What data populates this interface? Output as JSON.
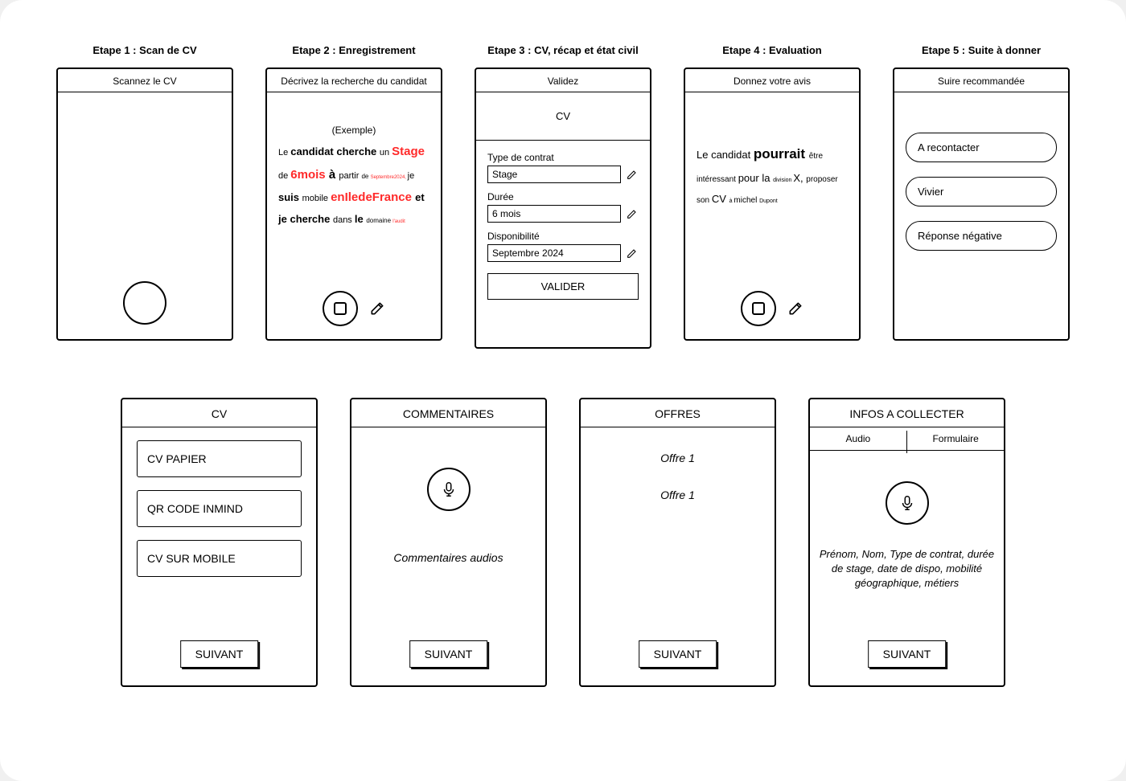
{
  "colors": {
    "bg": "#ffffff",
    "stroke": "#000000",
    "accent_red": "#ff2a2a"
  },
  "top_row": [
    {
      "step_label": "Etape 1 : Scan de CV",
      "header": "Scannez le CV"
    },
    {
      "step_label": "Etape 2 : Enregistrement",
      "header": "Décrivez la recherche du candidat",
      "example_label": "(Exemple)",
      "tokens": [
        {
          "t": "Le",
          "cls": "t-sm"
        },
        {
          "t": "candidat",
          "cls": "t-md"
        },
        {
          "t": "cherche",
          "cls": "t-md"
        },
        {
          "t": "un",
          "cls": "t-sm"
        },
        {
          "t": "Stage",
          "cls": "t-lg red"
        },
        {
          "t": "de",
          "cls": "t-sm"
        },
        {
          "t": "6mois",
          "cls": "t-lg red"
        },
        {
          "t": "à",
          "cls": "t-lg"
        },
        {
          "t": "partir",
          "cls": "t-sm"
        },
        {
          "t": "de",
          "cls": "t-xs"
        },
        {
          "t": "Septembre2024,",
          "cls": "t-xxs red"
        },
        {
          "t": "je",
          "cls": "t-sm"
        },
        {
          "t": "suis",
          "cls": "t-md"
        },
        {
          "t": "mobile",
          "cls": "t-sm"
        },
        {
          "t": "enIledeFrance",
          "cls": "t-lg red"
        },
        {
          "t": "et je",
          "cls": "t-md"
        },
        {
          "t": "cherche",
          "cls": "t-md"
        },
        {
          "t": "dans",
          "cls": "t-sm"
        },
        {
          "t": "le",
          "cls": "t-md"
        },
        {
          "t": "domaine",
          "cls": "t-xs"
        },
        {
          "t": "l'audit",
          "cls": "t-xxs red"
        }
      ]
    },
    {
      "step_label": "Etape 3 : CV, récap et état civil",
      "header": "Validez",
      "cv_label": "CV",
      "fields": [
        {
          "label": "Type de contrat",
          "value": "Stage"
        },
        {
          "label": "Durée",
          "value": "6 mois"
        },
        {
          "label": "Disponibilité",
          "value": "Septembre 2024"
        }
      ],
      "validate_label": "VALIDER"
    },
    {
      "step_label": "Etape 4 : Evaluation",
      "header": "Donnez votre avis",
      "tokens": [
        {
          "t": "Le",
          "cls": "e-md"
        },
        {
          "t": "candidat",
          "cls": "e-md"
        },
        {
          "t": "pourrait",
          "cls": "e-lg"
        },
        {
          "t": "être",
          "cls": "e-sm"
        },
        {
          "t": "intéressant",
          "cls": "e-sm"
        },
        {
          "t": "pour",
          "cls": "e-md"
        },
        {
          "t": "la",
          "cls": "e-md"
        },
        {
          "t": "division",
          "cls": "e-xs"
        },
        {
          "t": "X,",
          "cls": "e-md"
        },
        {
          "t": "proposer",
          "cls": "e-sm"
        },
        {
          "t": "son",
          "cls": "e-sm"
        },
        {
          "t": "CV",
          "cls": "e-md"
        },
        {
          "t": "à",
          "cls": "e-xs"
        },
        {
          "t": "michel",
          "cls": "e-sm"
        },
        {
          "t": "Dupont",
          "cls": "e-xs"
        }
      ]
    },
    {
      "step_label": "Etape 5 : Suite à donner",
      "header": "Suire recommandée",
      "options": [
        "A recontacter",
        "Vivier",
        "Réponse négative"
      ]
    }
  ],
  "bottom_row": [
    {
      "header": "CV",
      "buttons": [
        "CV PAPIER",
        "QR CODE INMIND",
        "CV SUR MOBILE"
      ],
      "next_label": "SUIVANT"
    },
    {
      "header": "COMMENTAIRES",
      "caption": "Commentaires audios",
      "next_label": "SUIVANT"
    },
    {
      "header": "OFFRES",
      "items": [
        "Offre 1",
        "Offre 1"
      ],
      "next_label": "SUIVANT"
    },
    {
      "header": "INFOS A COLLECTER",
      "tabs": [
        "Audio",
        "Formulaire"
      ],
      "caption": "Prénom, Nom, Type de contrat, durée de stage, date de dispo, mobilité géographique, métiers",
      "next_label": "SUIVANT"
    }
  ]
}
